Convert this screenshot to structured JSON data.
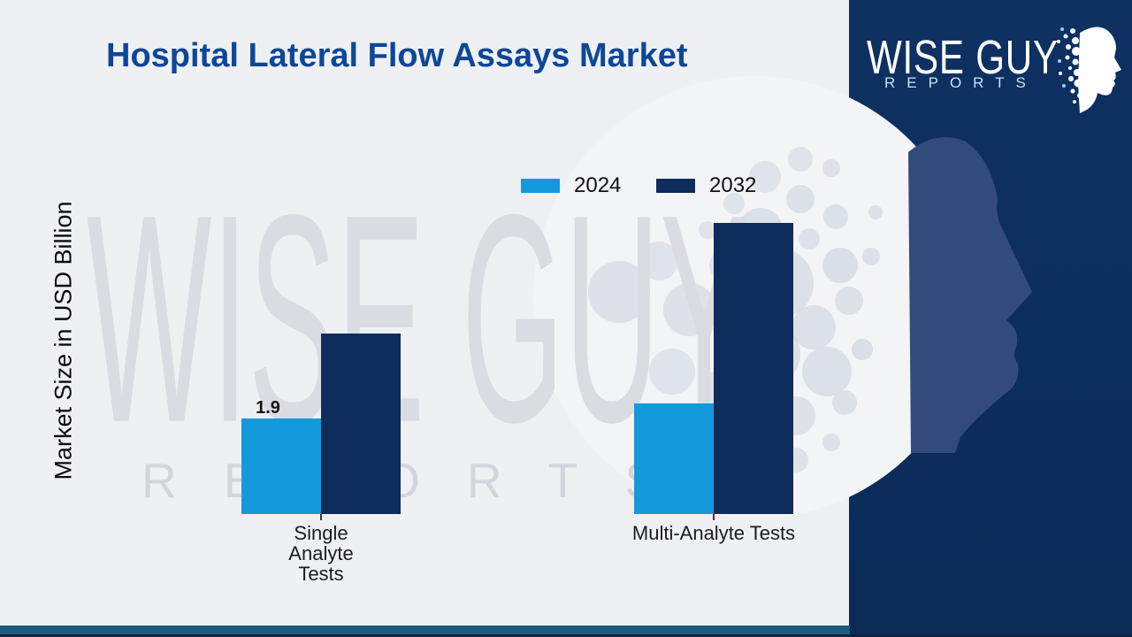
{
  "title": "Hospital Lateral Flow Assays Market",
  "y_axis_label": "Market Size in USD Billion",
  "watermark": {
    "line1": "WISE GUY",
    "line2": "REPORTS"
  },
  "logo": {
    "line1": "WISE GUY",
    "line2": "REPORTS"
  },
  "legend": [
    {
      "label": "2024",
      "color": "#149adc"
    },
    {
      "label": "2032",
      "color": "#0e2c5c"
    }
  ],
  "colors": {
    "title_blue": "#0d4798",
    "bar_2024": "#149adc",
    "bar_2032": "#0e2c5c",
    "panel_navy": "#0c2e5e",
    "teal_strip": "#1e5c7e",
    "watermark_gray": "#d9dce1"
  },
  "chart_data": {
    "type": "bar",
    "title": "Hospital Lateral Flow Assays Market",
    "categories": [
      "Single Analyte Tests",
      "Multi-Analyte Tests"
    ],
    "series": [
      {
        "name": "2024",
        "color": "#149adc",
        "values": [
          1.9,
          2.2
        ]
      },
      {
        "name": "2032",
        "color": "#0e2c5c",
        "values": [
          3.6,
          5.8
        ]
      }
    ],
    "value_labels": [
      {
        "series": "2024",
        "category": "Single Analyte Tests",
        "text": "1.9"
      }
    ],
    "xlabel": "",
    "ylabel": "Market Size in USD Billion",
    "ylim": [
      0,
      6.5
    ],
    "grid": false,
    "axis_lines": false,
    "legend_position": "top-right"
  }
}
